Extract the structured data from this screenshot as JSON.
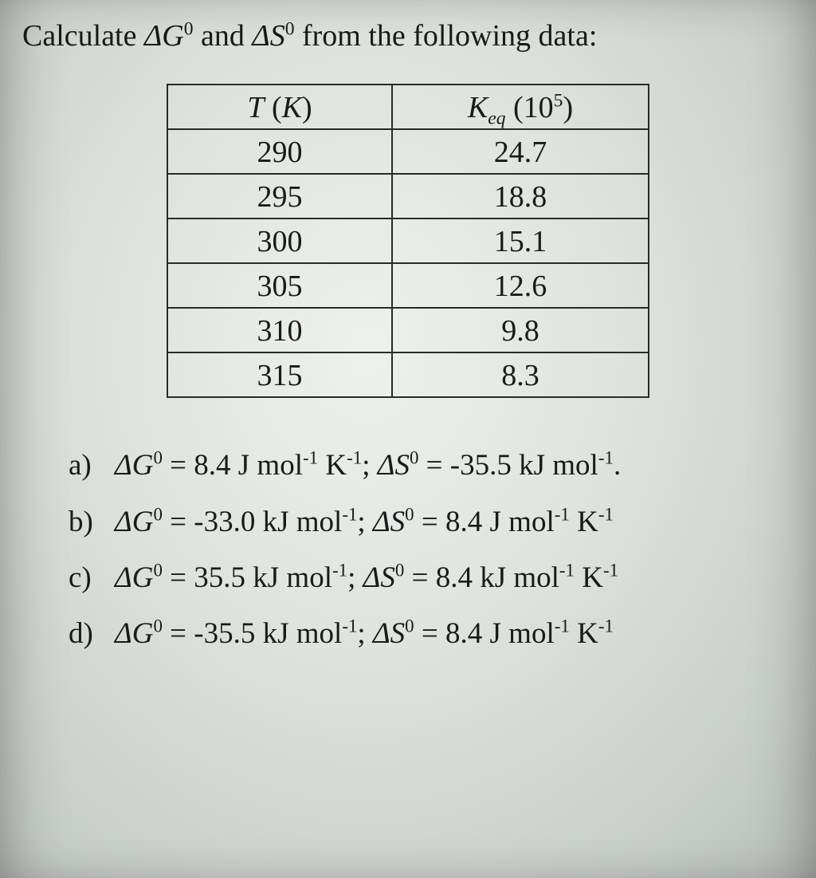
{
  "prompt": {
    "lead": "Calculate ",
    "dg": "ΔG",
    "sup0": "0",
    "mid": " and ",
    "ds": "ΔS",
    "tail": " from the following data:"
  },
  "table": {
    "headers": {
      "t_var": "T",
      "t_unit_open": " (",
      "t_unit": "K",
      "t_unit_close": ")",
      "k_var": "K",
      "k_sub": "eq",
      "k_open": " (10",
      "k_exp": "5",
      "k_close": ")"
    },
    "rows": [
      {
        "t": "290",
        "k": "24.7"
      },
      {
        "t": "295",
        "k": "18.8"
      },
      {
        "t": "300",
        "k": "15.1"
      },
      {
        "t": "305",
        "k": "12.6"
      },
      {
        "t": "310",
        "k": "9.8"
      },
      {
        "t": "315",
        "k": "8.3"
      }
    ]
  },
  "answers": [
    {
      "label": "a)",
      "dg_sym": "ΔG",
      "sup0": "0",
      "eq": " = ",
      "dg_val": "8.4 J mol",
      "dg_u1": "-1",
      "dg_u2_lead": " K",
      "dg_u2": "-1",
      "sep": "; ",
      "ds_sym": "ΔS",
      "ds_val": "-35.5 kJ mol",
      "ds_u1": "-1",
      "ds_u2_lead": "",
      "ds_u2": "",
      "end": "."
    },
    {
      "label": "b)",
      "dg_sym": "ΔG",
      "sup0": "0",
      "eq": " = ",
      "dg_val": "-33.0 kJ mol",
      "dg_u1": "-1",
      "dg_u2_lead": "",
      "dg_u2": "",
      "sep": "; ",
      "ds_sym": "ΔS",
      "ds_val": "8.4 J mol",
      "ds_u1": "-1",
      "ds_u2_lead": " K",
      "ds_u2": "-1",
      "end": ""
    },
    {
      "label": "c)",
      "dg_sym": "ΔG",
      "sup0": "0",
      "eq": " = ",
      "dg_val": "35.5 kJ mol",
      "dg_u1": "-1",
      "dg_u2_lead": "",
      "dg_u2": "",
      "sep": "; ",
      "ds_sym": "ΔS",
      "ds_val": "8.4 kJ mol",
      "ds_u1": "-1",
      "ds_u2_lead": " K",
      "ds_u2": "-1",
      "end": ""
    },
    {
      "label": "d)",
      "dg_sym": "ΔG",
      "sup0": "0",
      "eq": " = ",
      "dg_val": "-35.5 kJ mol",
      "dg_u1": "-1",
      "dg_u2_lead": "",
      "dg_u2": "",
      "sep": "; ",
      "ds_sym": "ΔS",
      "ds_val": "8.4 J mol",
      "ds_u1": "-1",
      "ds_u2_lead": " K",
      "ds_u2": "-1",
      "end": ""
    }
  ]
}
